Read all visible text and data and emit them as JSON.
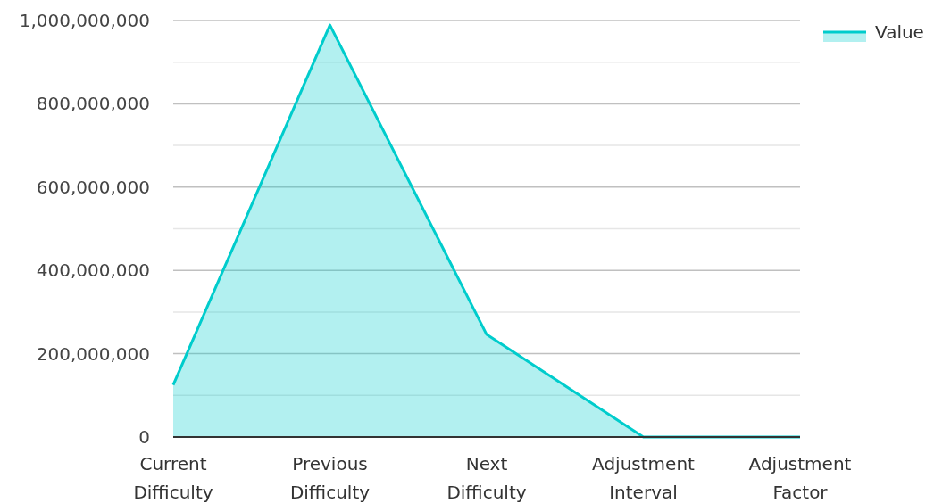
{
  "chart_data": {
    "type": "area",
    "categories": [
      "Current Difficulty",
      "Previous Difficulty",
      "Next Difficulty",
      "Adjustment Interval",
      "Adjustment Factor"
    ],
    "series": [
      {
        "name": "Value",
        "color": "#00cccc",
        "values": [
          125000000,
          989000000,
          246000000,
          0,
          0
        ]
      }
    ],
    "ylim": [
      0,
      1000000000
    ],
    "yticks": [
      0,
      {
        "value": 100000000,
        "label": null
      },
      {
        "value": 200000000,
        "label": "200,000,000"
      },
      {
        "value": 300000000,
        "label": null
      },
      {
        "value": 400000000,
        "label": "400,000,000"
      },
      {
        "value": 500000000,
        "label": null
      },
      {
        "value": 600000000,
        "label": "600,000,000"
      },
      {
        "value": 700000000,
        "label": null
      },
      {
        "value": 800000000,
        "label": "800,000,000"
      },
      {
        "value": 900000000,
        "label": null
      },
      {
        "value": 1000000000,
        "label": "1,000,000,000"
      }
    ],
    "grid": true,
    "legend": "top right"
  }
}
